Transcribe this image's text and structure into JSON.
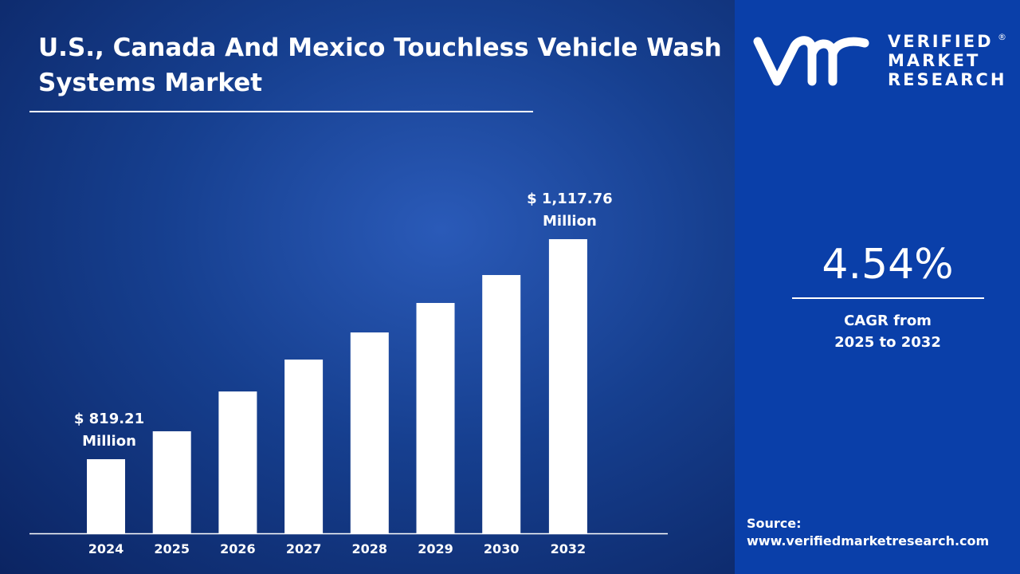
{
  "title": "U.S., Canada And Mexico Touchless Vehicle Wash Systems Market",
  "brand": {
    "logo_text": [
      "VERIFIED",
      "MARKET",
      "RESEARCH"
    ],
    "logo_mark": "vmr",
    "registered": "®"
  },
  "cagr": {
    "value": "4.54%",
    "label_line1": "CAGR from",
    "label_line2": "2025 to 2032"
  },
  "source": {
    "label": "Source:",
    "url": "www.verifiedmarketresearch.com"
  },
  "colors": {
    "bar": "#ffffff",
    "right_panel": "#0a3fa9",
    "background": "#163f8f"
  },
  "chart_data": {
    "type": "bar",
    "title": "U.S., Canada And Mexico Touchless Vehicle Wash Systems Market",
    "categories": [
      "2024",
      "2025",
      "2026",
      "2027",
      "2028",
      "2029",
      "2030",
      "2032"
    ],
    "values": [
      819.21,
      857.1,
      911.1,
      954.4,
      991.2,
      1031.2,
      1069.1,
      1117.76
    ],
    "ylim": [
      718.6,
      1117.76
    ],
    "grid": false,
    "unit": "USD Million",
    "data_labels": [
      {
        "category": "2024",
        "line1": "$ 819.21",
        "line2": "Million"
      },
      {
        "category": "2032",
        "line1": "$ 1,117.76",
        "line2": "Million"
      }
    ]
  }
}
